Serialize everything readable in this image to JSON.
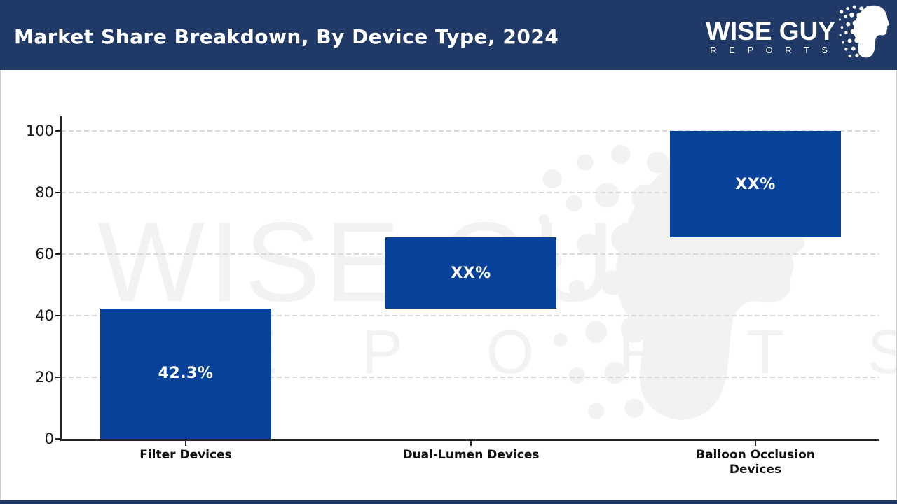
{
  "header": {
    "title": "Market Share Breakdown, By Device Type, 2024",
    "logo": {
      "name": "Wise Guy Reports",
      "line1": "WISE GUY",
      "line2": "R E P O R T S"
    }
  },
  "watermark": {
    "line1": "WISE GUY",
    "line2": "R E P O R T S"
  },
  "chart_data": {
    "type": "bar",
    "subtype": "waterfall",
    "title": "Market Share Breakdown, By Device Type, 2024",
    "categories": [
      "Filter Devices",
      "Dual-Lumen Devices",
      "Balloon Occlusion Devices"
    ],
    "segments": [
      {
        "category": "Filter Devices",
        "start": 0,
        "end": 42.3,
        "label": "42.3%"
      },
      {
        "category": "Dual-Lumen Devices",
        "start": 42.3,
        "end": 65.4,
        "label": "XX%"
      },
      {
        "category": "Balloon Occlusion Devices",
        "start": 65.4,
        "end": 100,
        "label": "XX%"
      }
    ],
    "unit": "percent market share",
    "yticks": [
      0,
      20,
      40,
      60,
      80,
      100
    ],
    "ylim": [
      0,
      105
    ],
    "grid": {
      "horizontal": true,
      "style": "dashed"
    },
    "legend": "none",
    "colors": {
      "bar": "#08429a",
      "axis": "#262626",
      "grid": "#d9d9d9",
      "value_label": "#ffffff",
      "tick_label": "#1a1a1a"
    }
  },
  "theme": {
    "header_bg": "#213966",
    "footer_bg": "#213966",
    "watermark_color": "#f2f2f2",
    "body_bg": "#ffffff"
  }
}
